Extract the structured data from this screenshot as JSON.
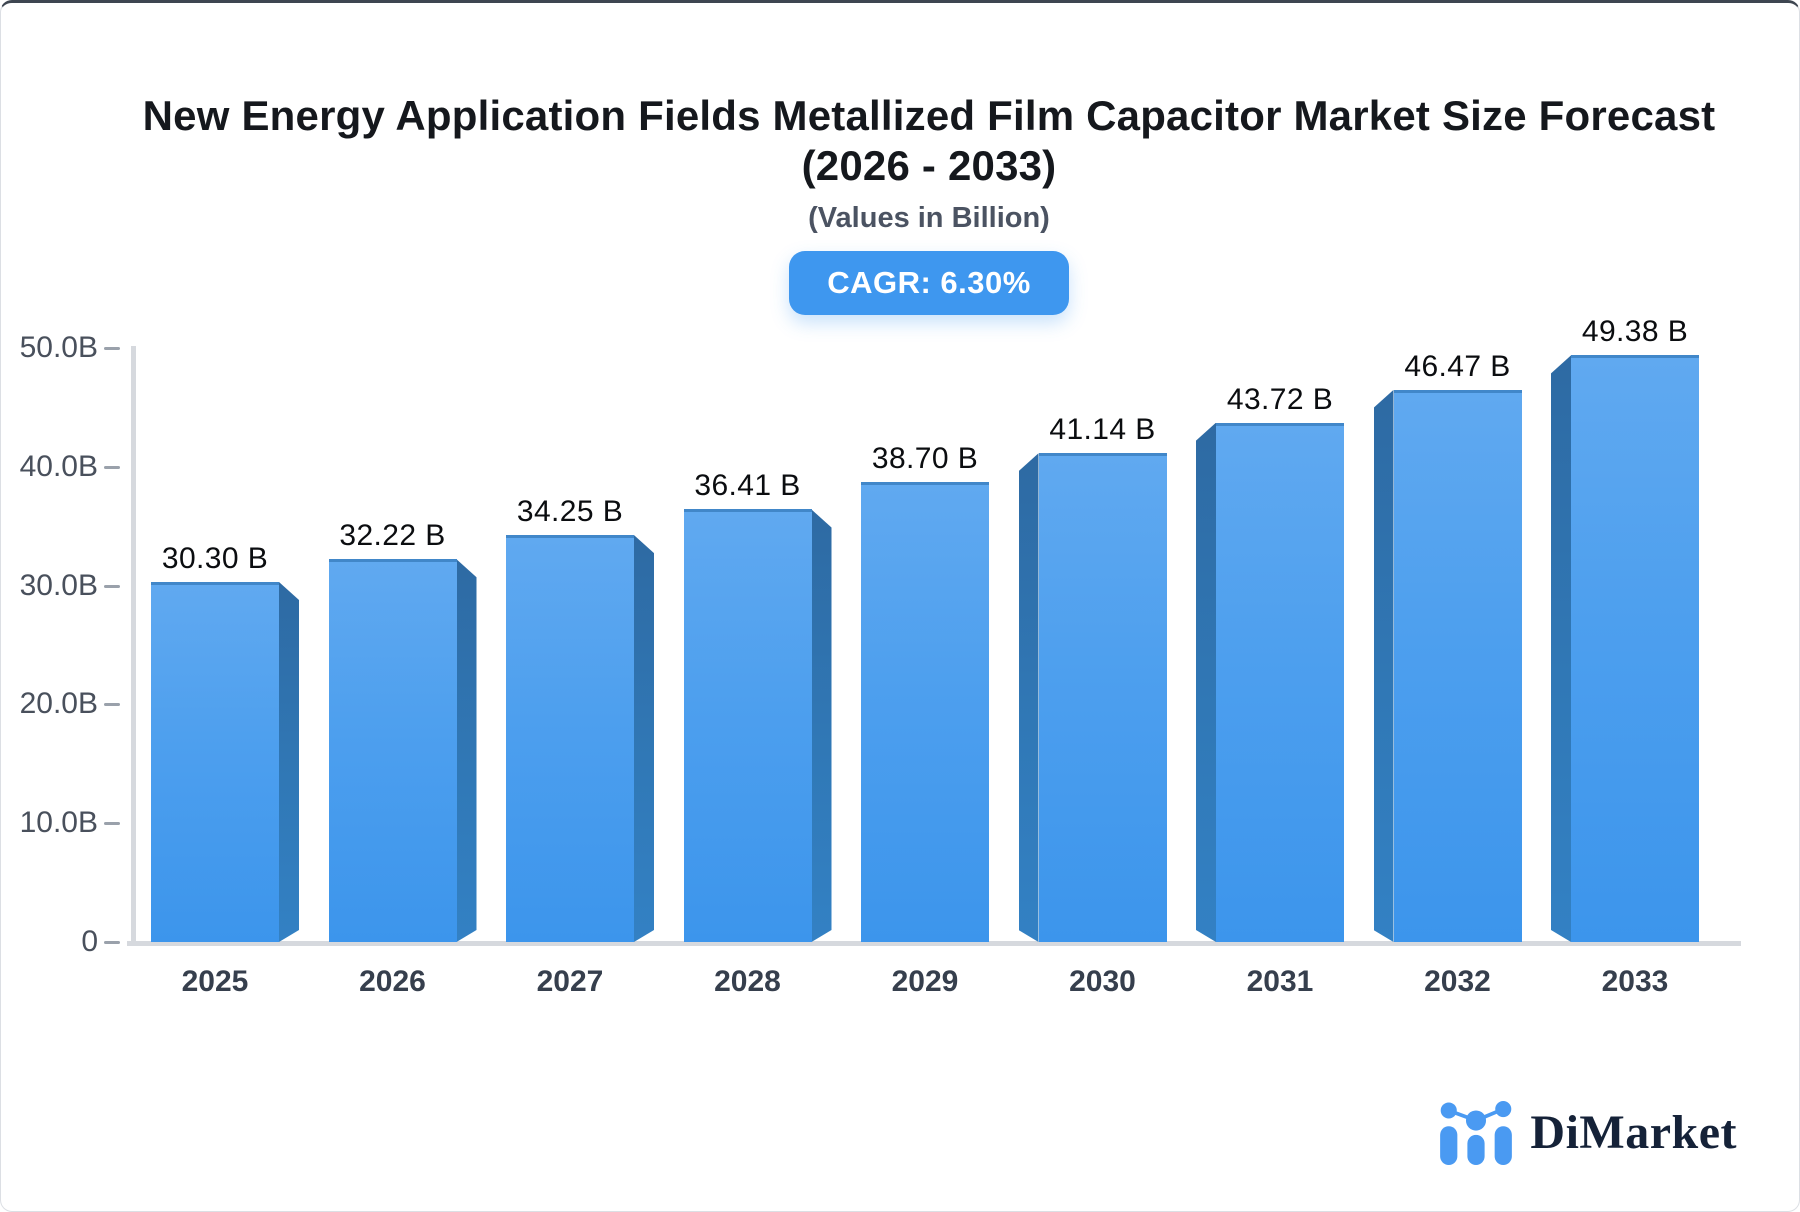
{
  "header": {
    "title_line1": "New Energy Application Fields Metallized Film Capacitor Market Size Forecast",
    "title_line2": "(2026 - 2033)",
    "subtitle": "(Values in Billion)",
    "cagr_label": "CAGR: 6.30%"
  },
  "chart_data": {
    "type": "bar",
    "title": "New Energy Application Fields Metallized Film Capacitor Market Size Forecast (2026 - 2033)",
    "subtitle": "(Values in Billion)",
    "cagr_percent": 6.3,
    "categories": [
      "2025",
      "2026",
      "2027",
      "2028",
      "2029",
      "2030",
      "2031",
      "2032",
      "2033"
    ],
    "values": [
      30.3,
      32.22,
      34.25,
      36.41,
      38.7,
      41.14,
      43.72,
      46.47,
      49.38
    ],
    "bar_labels": [
      "30.30 B",
      "32.22 B",
      "34.25 B",
      "36.41 B",
      "38.70 B",
      "41.14 B",
      "43.72 B",
      "46.47 B",
      "49.38 B"
    ],
    "xlabel": "",
    "ylabel": "",
    "ylim": [
      0,
      50
    ],
    "ytick_values": [
      50,
      40,
      30,
      20,
      10,
      0
    ],
    "ytick_labels": [
      "50.0B",
      "40.0B",
      "30.0B",
      "20.0B",
      "10.0B",
      "0"
    ],
    "grid": false,
    "legend_position": "none",
    "bar_color_top": "#60a9f0",
    "bar_color_bottom": "#3c95ec",
    "bar_side_color": "#2f6fa9",
    "badge_color": "#3e97ef"
  },
  "branding": {
    "logo_text": "DiMarket",
    "logo_icon": "mini-bar-chart-icon",
    "logo_color": "#4a9af2"
  }
}
